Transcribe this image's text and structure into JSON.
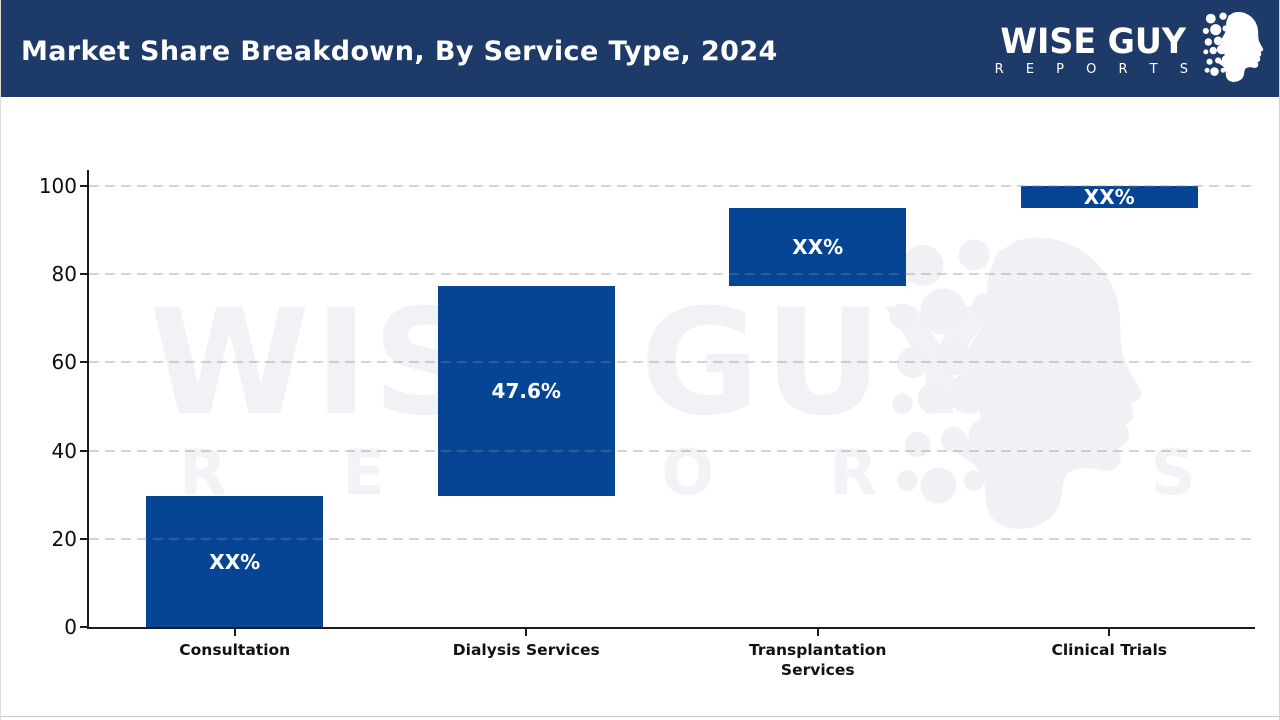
{
  "header": {
    "title": "Market Share Breakdown, By Service Type, 2024",
    "background_color": "#1e3a68",
    "logo": {
      "line1": "WISE GUY",
      "line2": "R E P O R T S"
    }
  },
  "watermark": {
    "line1": "WISE GUY",
    "line2": "R E P O R T S"
  },
  "chart_data": {
    "type": "bar",
    "subtype": "waterfall",
    "title": "Market Share Breakdown, By Service Type, 2024",
    "categories": [
      "Consultation",
      "Dialysis Services",
      "Transplantation Services",
      "Clinical Trials"
    ],
    "segments": [
      {
        "category": "Consultation",
        "start": 0,
        "end": 29.7,
        "label": "XX%"
      },
      {
        "category": "Dialysis Services",
        "start": 29.7,
        "end": 77.3,
        "label": "47.6%"
      },
      {
        "category": "Transplantation Services",
        "start": 77.3,
        "end": 95.0,
        "label": "XX%"
      },
      {
        "category": "Clinical Trials",
        "start": 95.0,
        "end": 100.0,
        "label": "XX%"
      }
    ],
    "ylim": [
      0,
      100
    ],
    "yticks": [
      0,
      20,
      40,
      60,
      80,
      100
    ],
    "xlabel": "",
    "ylabel": "",
    "grid": "dashed-horizontal",
    "gridline_color": "#d8d8d8",
    "bar_color": "#054594",
    "label_color": "#ffffff",
    "legend": "none"
  }
}
